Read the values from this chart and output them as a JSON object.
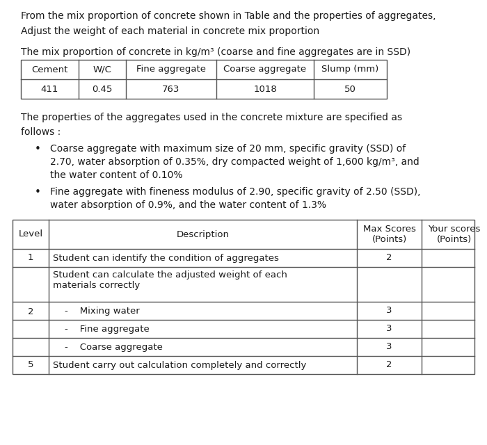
{
  "bg_color": "#ffffff",
  "text_color": "#1a1a1a",
  "intro_line1": "From the mix proportion of concrete shown in Table and the properties of aggregates,",
  "intro_line2": "Adjust the weight of each material in concrete mix proportion",
  "table1_title": "The mix proportion of concrete in kg/m³ (coarse and fine aggregates are in SSD)",
  "table1_headers": [
    "Cement",
    "W/C",
    "Fine aggregate",
    "Coarse aggregate",
    "Slump (mm)"
  ],
  "table1_values": [
    "411",
    "0.45",
    "763",
    "1018",
    "50"
  ],
  "properties_text1": "The properties of the aggregates used in the concrete mixture are specified as",
  "properties_text2": "follows :",
  "bullet1_line1": "Coarse aggregate with maximum size of 20 mm, specific gravity (SSD) of",
  "bullet1_line2": "2.70, water absorption of 0.35%, dry compacted weight of 1,600 kg/m³, and",
  "bullet1_line3": "the water content of 0.10%",
  "bullet2_line1": "Fine aggregate with fineness modulus of 2.90, specific gravity of 2.50 (SSD),",
  "bullet2_line2": "water absorption of 0.9%, and the water content of 1.3%",
  "table2_headers_col0": "Level",
  "table2_headers_col1": "Description",
  "table2_headers_col2": "Max Scores\n(Points)",
  "table2_headers_col3": "Your scores\n(Points)",
  "row_data": [
    [
      "1",
      "Student can identify the condition of aggregates",
      "2"
    ],
    [
      "",
      "Student can calculate the adjusted weight of each\nmaterials correctly",
      ""
    ],
    [
      "2",
      "    -    Mixing water",
      "3"
    ],
    [
      "",
      "    -    Fine aggregate",
      "3"
    ],
    [
      "",
      "    -    Coarse aggregate",
      "3"
    ],
    [
      "5",
      "Student carry out calculation completely and correctly",
      "2"
    ]
  ],
  "font_size_body": 10.0,
  "font_size_table": 9.5,
  "font_size_small": 9.0
}
